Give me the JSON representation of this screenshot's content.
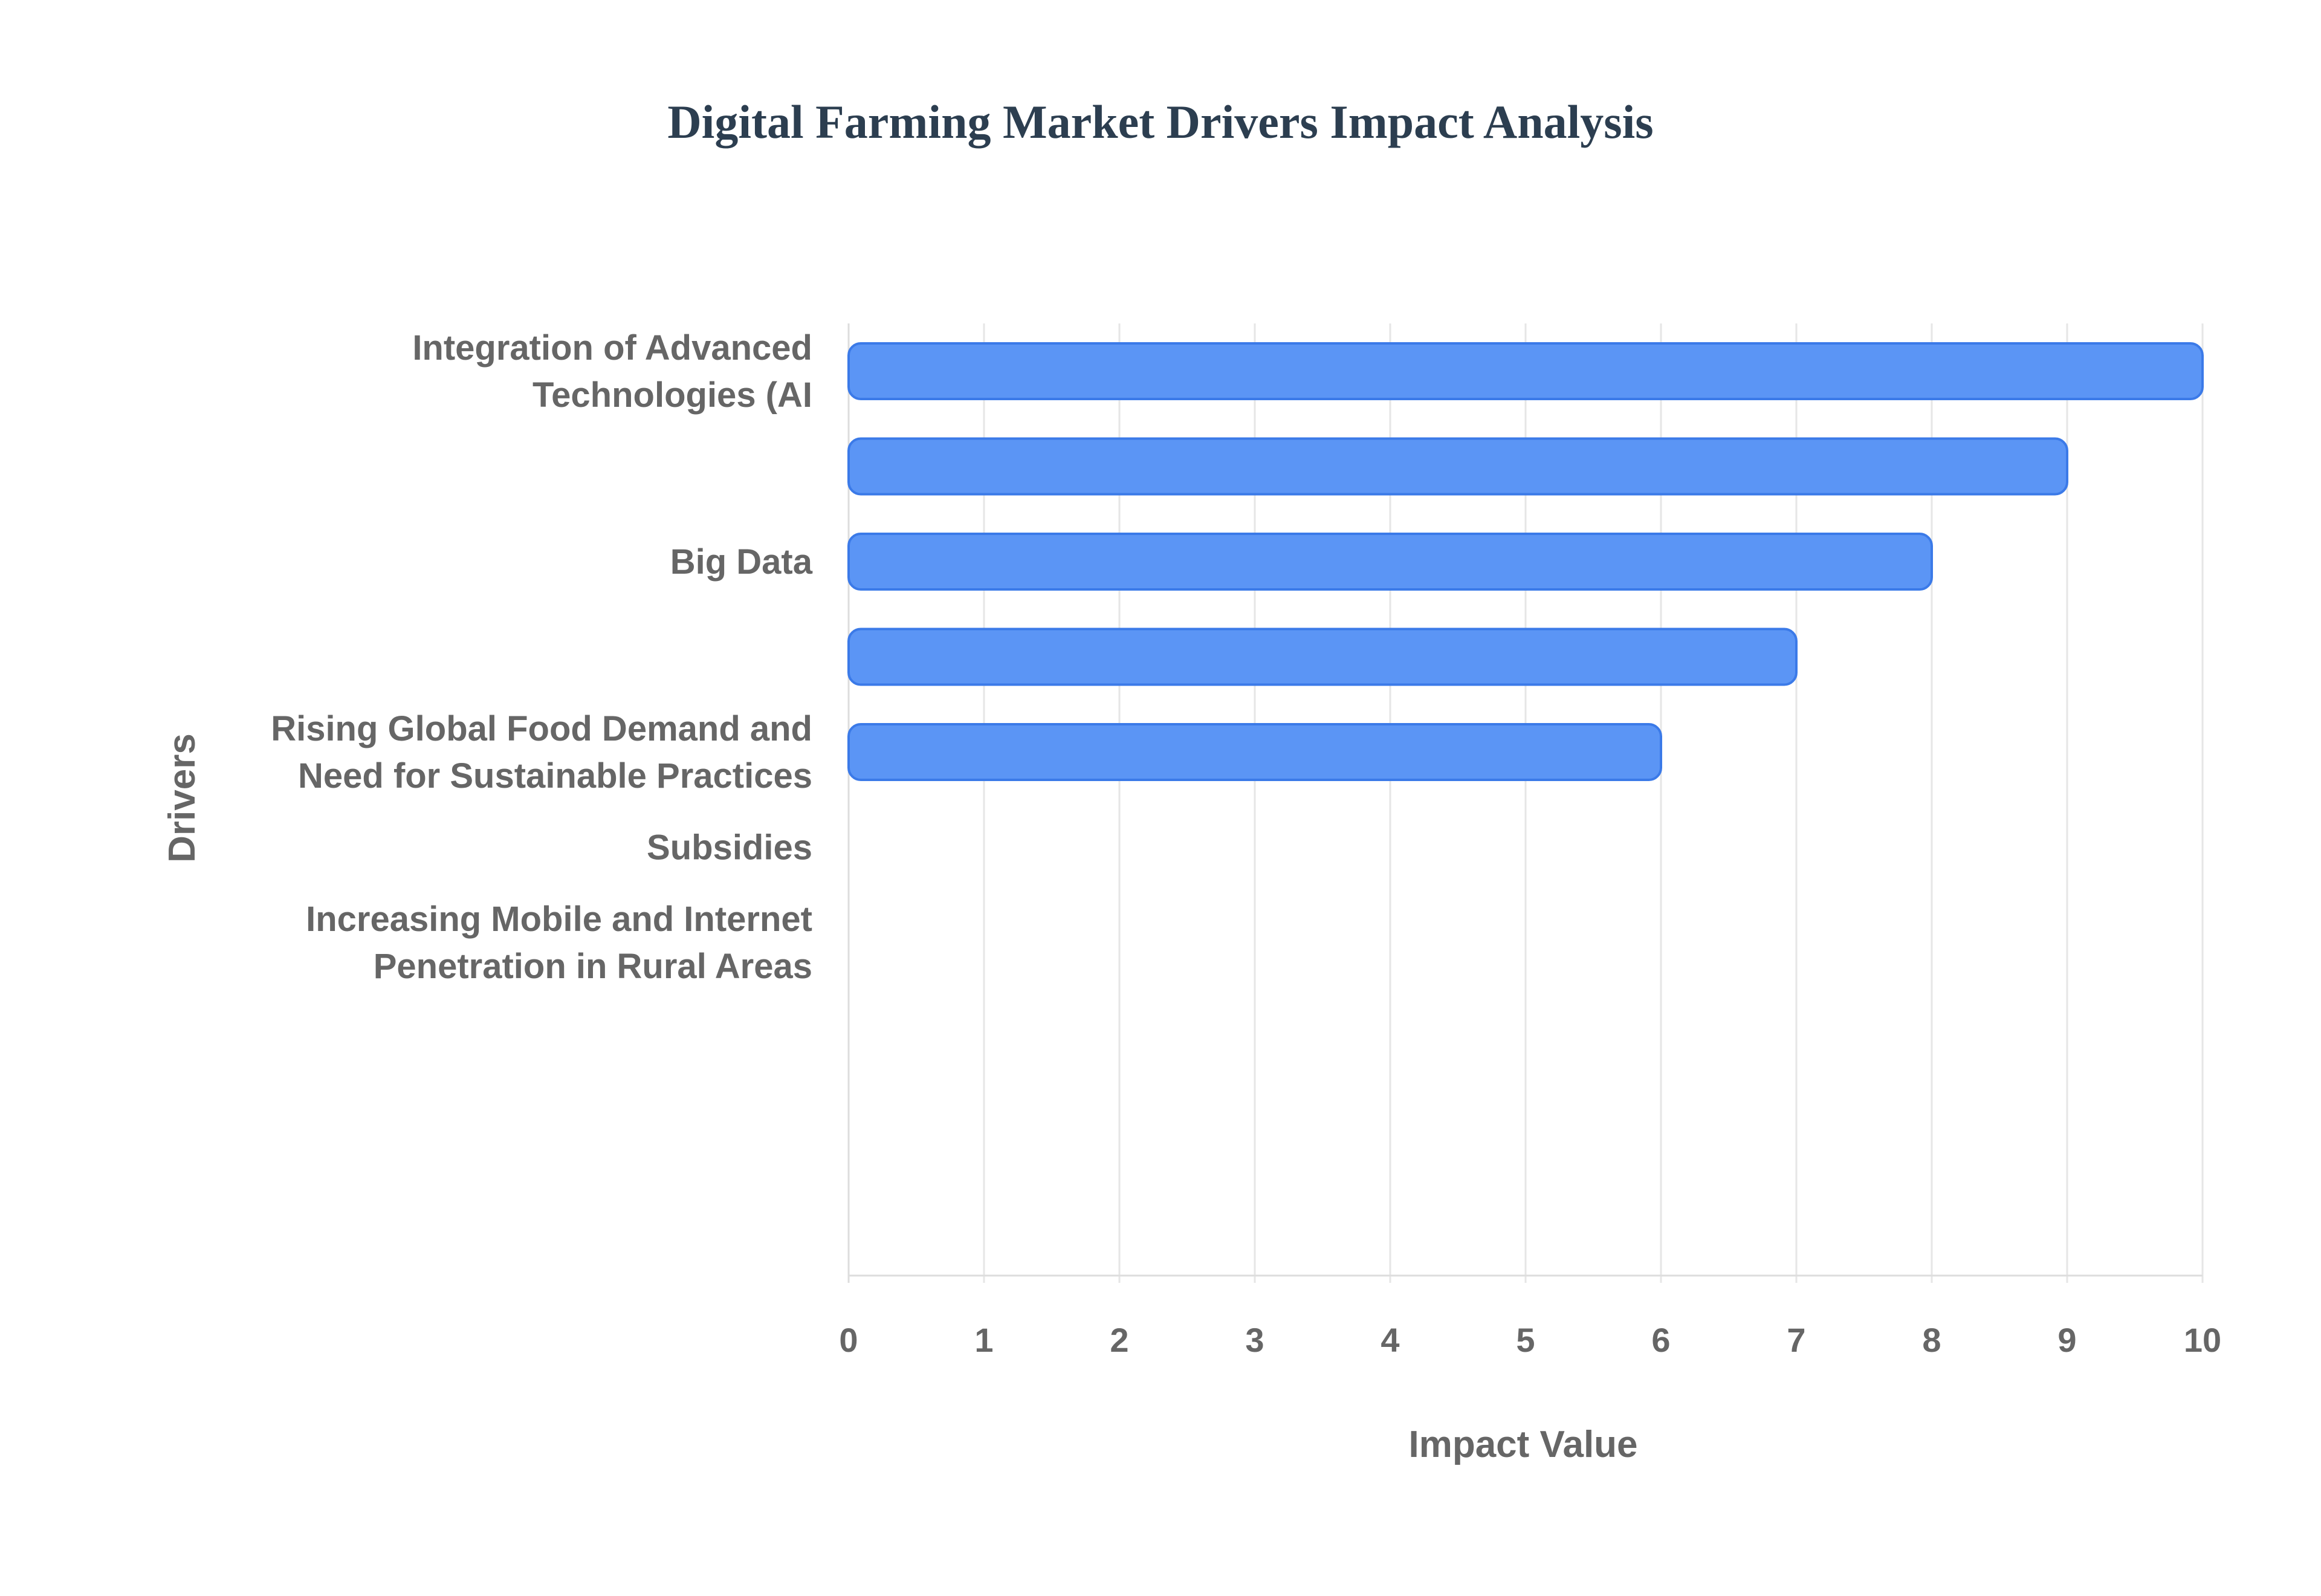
{
  "chart_data": {
    "type": "bar",
    "orientation": "horizontal",
    "title": "Digital Farming Market Drivers Impact Analysis",
    "xlabel": "Impact Value",
    "ylabel": "Drivers",
    "xlim": [
      0,
      10
    ],
    "x_ticks": [
      "0",
      "1",
      "2",
      "3",
      "4",
      "5",
      "6",
      "7",
      "8",
      "9",
      "10"
    ],
    "grid": true,
    "legend": "none",
    "bar_color": "#5b95f5",
    "bar_edge_color": "#3b7ae8",
    "categories": [
      [
        "Integration of Advanced",
        "Technologies (AI"
      ],
      [],
      [
        "Big Data"
      ],
      [],
      [
        "Rising Global Food Demand and",
        "Need for Sustainable Practices"
      ],
      [
        "Subsidies"
      ],
      [
        "Increasing Mobile and Internet",
        "Penetration in Rural Areas"
      ]
    ],
    "values": [
      10,
      9,
      8,
      7,
      6,
      null,
      null
    ]
  }
}
